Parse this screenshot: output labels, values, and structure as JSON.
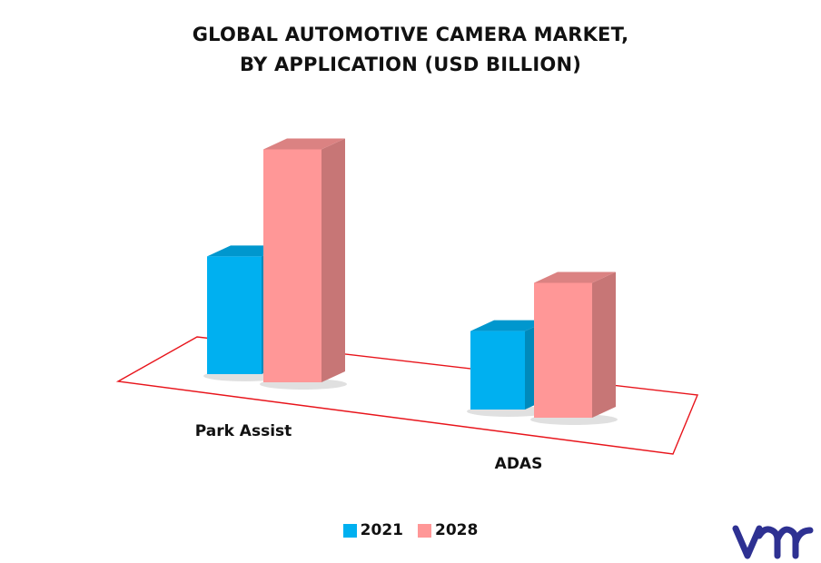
{
  "title_lines": [
    "GLOBAL AUTOMOTIVE CAMERA MARKET,",
    "BY APPLICATION (USD BILLION)"
  ],
  "colors": {
    "series_2021": "#00b0f0",
    "series_2028": "#ff9797",
    "floor_outline": "#e8141b",
    "logo": "#2e3192"
  },
  "logo_text": "vmr",
  "chart_data": {
    "type": "bar",
    "style": "3d",
    "title": "GLOBAL AUTOMOTIVE CAMERA MARKET, BY APPLICATION (USD BILLION)",
    "categories": [
      "Park Assist",
      "ADAS"
    ],
    "series": [
      {
        "name": "2021",
        "values": [
          4.8,
          3.2
        ]
      },
      {
        "name": "2028",
        "values": [
          9.5,
          5.5
        ]
      }
    ],
    "ylim": [
      0,
      10
    ],
    "grid": false,
    "legend": "bottom-center",
    "xlabel": "",
    "ylabel": ""
  }
}
